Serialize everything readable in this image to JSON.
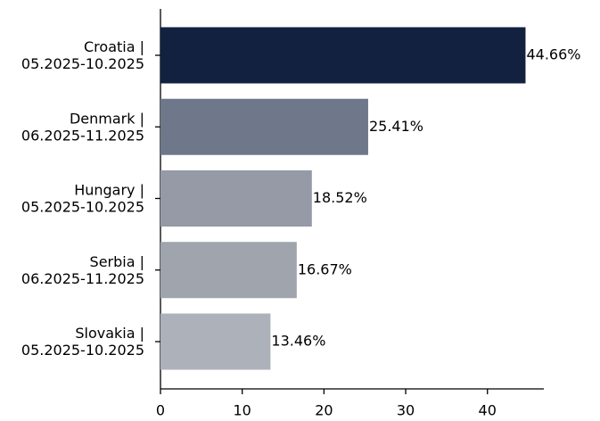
{
  "chart_data": {
    "type": "barh",
    "categories": [
      [
        "Croatia |",
        "05.2025-10.2025"
      ],
      [
        "Denmark |",
        "06.2025-11.2025"
      ],
      [
        "Hungary |",
        "05.2025-10.2025"
      ],
      [
        "Serbia |",
        "06.2025-11.2025"
      ],
      [
        "Slovakia |",
        "05.2025-10.2025"
      ]
    ],
    "values": [
      44.66,
      25.41,
      18.52,
      16.67,
      13.46
    ],
    "value_labels": [
      "44.66%",
      "25.41%",
      "18.52%",
      "16.67%",
      "13.46%"
    ],
    "colors": [
      "#12213f",
      "#6e788a",
      "#959aa6",
      "#9fa4ad",
      "#adb1ba"
    ],
    "xlim": [
      0,
      46.9
    ],
    "xticks": [
      0,
      10,
      20,
      30,
      40
    ],
    "grid": false
  }
}
